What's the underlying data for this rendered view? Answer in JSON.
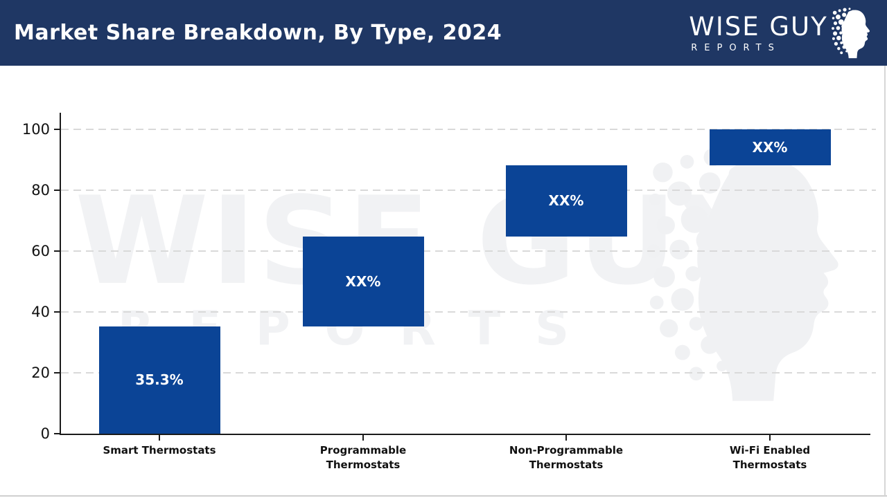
{
  "header": {
    "title": "Market Share Breakdown, By Type, 2024",
    "logo_line1": "WISE GUY",
    "logo_line2": "REPORTS"
  },
  "watermark": {
    "line1": "WISE GUY",
    "line2": "REPORTS"
  },
  "chart_data": {
    "type": "bar",
    "variant": "waterfall",
    "title": "Market Share Breakdown, By Type, 2024",
    "categories": [
      "Smart Thermostats",
      "Programmable Thermostats",
      "Non-Programmable Thermostats",
      "Wi-Fi Enabled Thermostats"
    ],
    "bars": [
      {
        "category": "Smart Thermostats",
        "label_lines": [
          "Smart Thermostats"
        ],
        "start": 0,
        "end": 35.3,
        "value_label": "35.3%"
      },
      {
        "category": "Programmable Thermostats",
        "label_lines": [
          "Programmable",
          "Thermostats"
        ],
        "start": 35.3,
        "end": 64.8,
        "value_label": "XX%"
      },
      {
        "category": "Non-Programmable Thermostats",
        "label_lines": [
          "Non-Programmable",
          "Thermostats"
        ],
        "start": 64.8,
        "end": 88.2,
        "value_label": "XX%"
      },
      {
        "category": "Wi-Fi Enabled Thermostats",
        "label_lines": [
          "Wi-Fi Enabled",
          "Thermostats"
        ],
        "start": 88.2,
        "end": 100,
        "value_label": "XX%"
      }
    ],
    "ylim": [
      0,
      100
    ],
    "yticks": [
      0,
      20,
      40,
      60,
      80,
      100
    ],
    "grid": "horizontal-dashed",
    "legend": "none",
    "bar_color": "#0b4496",
    "value_label_color": "#ffffff",
    "header_color": "#1f3764"
  }
}
